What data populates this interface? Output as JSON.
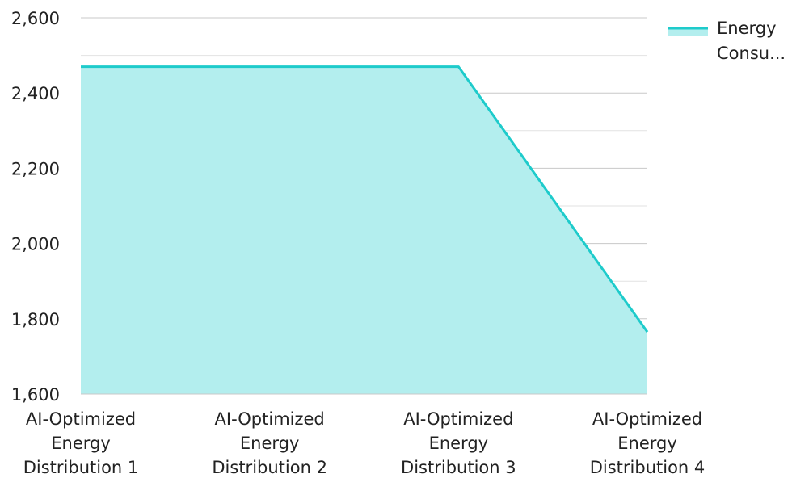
{
  "chart_data": {
    "type": "area",
    "categories": [
      "AI-Optimized Energy Distribution 1",
      "AI-Optimized Energy Distribution 2",
      "AI-Optimized Energy Distribution 3",
      "AI-Optimized Energy Distribution 4"
    ],
    "category_lines": [
      [
        "AI-Optimized",
        "Energy",
        "Distribution 1"
      ],
      [
        "AI-Optimized",
        "Energy",
        "Distribution 2"
      ],
      [
        "AI-Optimized",
        "Energy",
        "Distribution 3"
      ],
      [
        "AI-Optimized",
        "Energy",
        "Distribution 4"
      ]
    ],
    "series": [
      {
        "name": "Energy Consu...",
        "name_lines": [
          "Energy",
          "Consu..."
        ],
        "values": [
          2470,
          2470,
          2470,
          1765
        ]
      }
    ],
    "y_ticks": [
      "2,600",
      "2,400",
      "2,200",
      "2,000",
      "1,800",
      "1,600"
    ],
    "y_tick_values": [
      2600,
      2400,
      2200,
      2000,
      1800,
      1600
    ],
    "ylim": [
      1600,
      2600
    ],
    "minor_gridlines": [
      2500,
      2300,
      2100,
      1900,
      1700
    ],
    "grid": true,
    "legend_position": "top-right",
    "colors": {
      "line": "#1ECBCB",
      "fill": "#B3EEEE",
      "grid": "#C8C8C8",
      "text": "#222222"
    }
  }
}
